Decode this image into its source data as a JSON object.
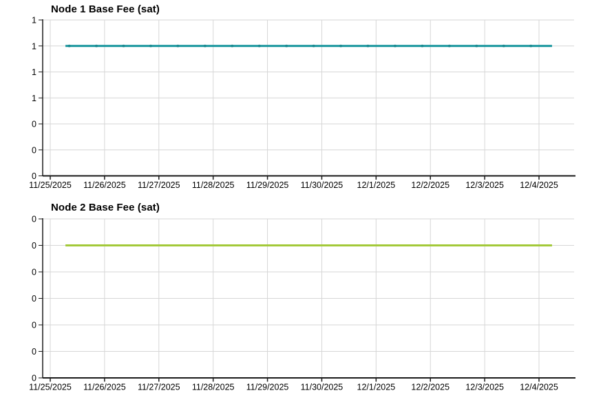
{
  "page": {
    "background_color": "#ffffff",
    "text_color": "#000000",
    "gridline_color": "#d6d6d6",
    "axis_color": "#1a1a1a"
  },
  "chart_data": [
    {
      "type": "line",
      "title": "Node 1 Base Fee (sat)",
      "xlabel": "",
      "ylabel": "",
      "categories": [
        "11/25/2025",
        "11/26/2025",
        "11/27/2025",
        "11/28/2025",
        "11/29/2025",
        "11/30/2025",
        "12/1/2025",
        "12/2/2025",
        "12/3/2025",
        "12/4/2025"
      ],
      "x_tick_labels": [
        "11/25/2025",
        "11/26/2025",
        "11/27/2025",
        "11/28/2025",
        "11/29/2025",
        "11/30/2025",
        "12/1/2025",
        "12/2/2025",
        "12/3/2025",
        "12/4/2025"
      ],
      "y_tick_labels": [
        "1",
        "1",
        "1",
        "1",
        "0",
        "0",
        "0"
      ],
      "y_ticks": [
        1.2,
        1.0,
        0.8,
        0.6,
        0.4,
        0.2,
        0.0
      ],
      "ylim": [
        0,
        1.2
      ],
      "grid": true,
      "legend_position": "none",
      "series": [
        {
          "name": "Node 1 base fee",
          "color": "#14949c",
          "marker_color": "#0c7a82",
          "markers_visible": true,
          "constant_value": 1,
          "values": [
            1,
            1,
            1,
            1,
            1,
            1,
            1,
            1,
            1,
            1
          ],
          "x_start_day_offset": 0.28,
          "x_end_day_offset": 9.24
        }
      ]
    },
    {
      "type": "line",
      "title": "Node 2 Base Fee (sat)",
      "xlabel": "",
      "ylabel": "",
      "categories": [
        "11/25/2025",
        "11/26/2025",
        "11/27/2025",
        "11/28/2025",
        "11/29/2025",
        "11/30/2025",
        "12/1/2025",
        "12/2/2025",
        "12/3/2025",
        "12/4/2025"
      ],
      "x_tick_labels": [
        "11/25/2025",
        "11/26/2025",
        "11/27/2025",
        "11/28/2025",
        "11/29/2025",
        "11/30/2025",
        "12/1/2025",
        "12/2/2025",
        "12/3/2025",
        "12/4/2025"
      ],
      "y_tick_labels": [
        "0",
        "0",
        "0",
        "0",
        "0",
        "0",
        "0"
      ],
      "y_ticks": [
        0.0012,
        0.001,
        0.0008,
        0.0006,
        0.0004,
        0.0002,
        0.0
      ],
      "ylim": [
        0,
        0.0012
      ],
      "grid": true,
      "legend_position": "none",
      "series": [
        {
          "name": "Node 2 base fee",
          "color": "#a3c939",
          "marker_color": "#8fb32c",
          "markers_visible": false,
          "constant_value": 0.001,
          "values": [
            0.001,
            0.001,
            0.001,
            0.001,
            0.001,
            0.001,
            0.001,
            0.001,
            0.001,
            0.001
          ],
          "x_start_day_offset": 0.28,
          "x_end_day_offset": 9.24
        }
      ]
    }
  ]
}
